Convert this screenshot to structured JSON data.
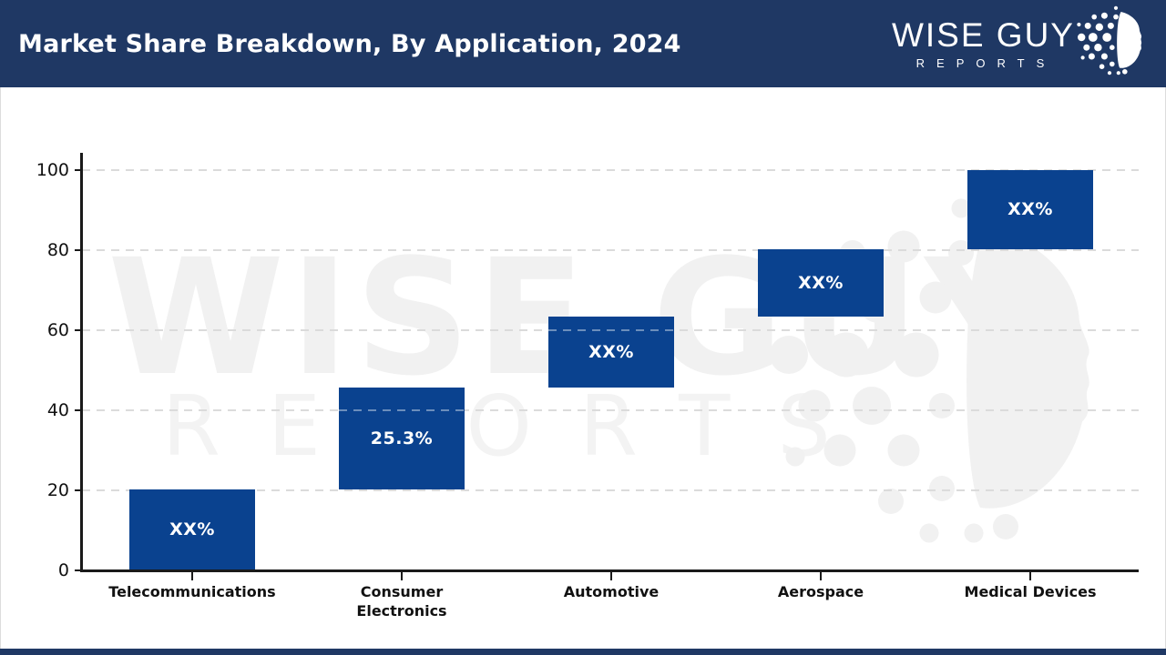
{
  "header": {
    "title": "Market Share Breakdown, By Application, 2024",
    "logo": {
      "brand_top": "WISE GUY",
      "brand_bottom": "REPORTS"
    }
  },
  "watermark": {
    "big_text": "WISE GUY",
    "sub_text": "REPORTS"
  },
  "colors": {
    "header_bg": "#1f3864",
    "footer_bg": "#1f3864",
    "bar": "#0a428f",
    "bar_label": "#ffffff",
    "gridline": "#dbdbdb",
    "axis": "#1a1a1a",
    "title_text": "#ffffff",
    "watermark": "#f1f1f1"
  },
  "chart_data": {
    "type": "bar",
    "subtype": "floating-waterfall",
    "title": "Market Share Breakdown, By Application, 2024",
    "xlabel": "",
    "ylabel": "",
    "ylim": [
      0,
      100
    ],
    "yticks": [
      0,
      20,
      40,
      60,
      80,
      100
    ],
    "grid": "horizontal-dashed",
    "legend": "none",
    "categories": [
      "Telecommunications",
      "Consumer\nElectronics",
      "Automotive",
      "Aerospace",
      "Medical Devices"
    ],
    "segments": [
      {
        "category": "Telecommunications",
        "start": 0,
        "end": 20.3,
        "label": "XX%"
      },
      {
        "category": "Consumer\nElectronics",
        "start": 20.3,
        "end": 45.6,
        "label": "25.3%"
      },
      {
        "category": "Automotive",
        "start": 45.6,
        "end": 63.5,
        "label": "XX%"
      },
      {
        "category": "Aerospace",
        "start": 63.5,
        "end": 80.3,
        "label": "XX%"
      },
      {
        "category": "Medical Devices",
        "start": 80.3,
        "end": 100,
        "label": "XX%"
      }
    ]
  }
}
